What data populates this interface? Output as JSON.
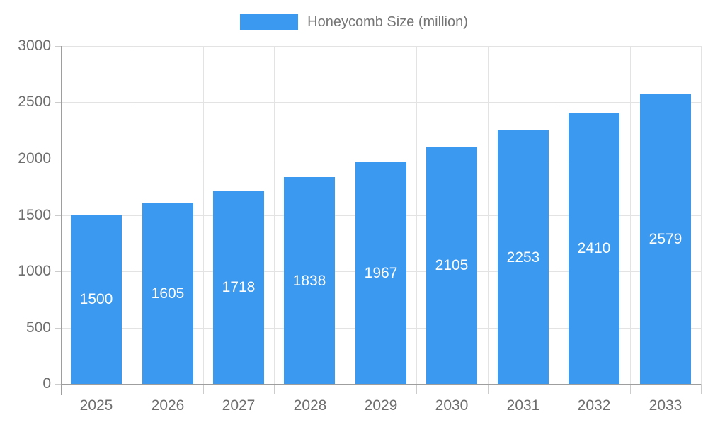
{
  "legend": {
    "label": "Honeycomb Size (million)"
  },
  "chart_data": {
    "type": "bar",
    "title": "Honeycomb Size (million)",
    "categories": [
      "2025",
      "2026",
      "2027",
      "2028",
      "2029",
      "2030",
      "2031",
      "2032",
      "2033"
    ],
    "series": [
      {
        "name": "Honeycomb Size (million)",
        "values": [
          1500,
          1605,
          1718,
          1838,
          1967,
          2105,
          2253,
          2410,
          2579
        ]
      }
    ],
    "bar_labels": [
      "1500",
      "1605",
      "1718",
      "1838",
      "1967",
      "2105",
      "2253",
      "2410",
      "2579"
    ],
    "xlabel": "",
    "ylabel": "",
    "ylim": [
      0,
      3000
    ],
    "yticks": [
      0,
      500,
      1000,
      1500,
      2000,
      2500,
      3000
    ],
    "grid": true,
    "legend_position": "top",
    "colors": {
      "bar": "#3b99f0",
      "bar_label": "#ffffff",
      "axis_text": "#6e6e6e",
      "legend_text": "#757575",
      "grid_line": "#e3e3e3",
      "axis_line": "#9e9e9e",
      "tick_mark": "#cccccc",
      "background": "#ffffff"
    }
  }
}
